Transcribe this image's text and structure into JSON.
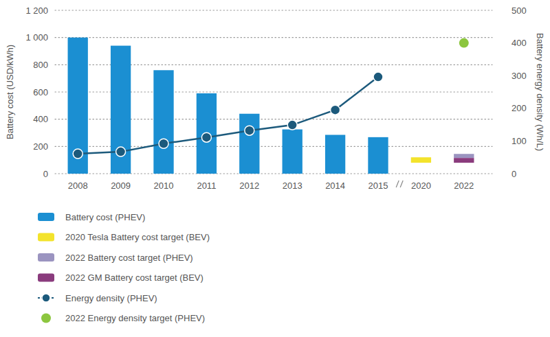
{
  "chart_data": {
    "type": "bar",
    "y_label": "Battery cost (USD/kWh)",
    "y2_label": "Battery energy density (Wh/L)",
    "categories": [
      "2008",
      "2009",
      "2010",
      "2011",
      "2012",
      "2013",
      "2014",
      "2015",
      "2020",
      "2022"
    ],
    "ylim": [
      0,
      1200
    ],
    "yticks": [
      0,
      200,
      400,
      600,
      800,
      {
        "value": 1000,
        "label": "1 000"
      },
      {
        "value": 1200,
        "label": "1 200"
      }
    ],
    "y2lim": [
      0,
      500
    ],
    "y2ticks": [
      0,
      100,
      200,
      300,
      400,
      500
    ],
    "grid": true,
    "legend": "bottom-left",
    "series": [
      {
        "name": "Battery cost (PHEV)",
        "type": "bar",
        "color": "#1b8fd2",
        "values": [
          1000,
          940,
          760,
          590,
          440,
          325,
          285,
          268,
          null,
          null
        ]
      },
      {
        "name": "2020 Tesla Battery cost target (BEV)",
        "type": "bar",
        "color": "#f3e32c",
        "values": [
          null,
          null,
          null,
          null,
          null,
          null,
          null,
          null,
          120,
          null
        ],
        "base": [
          null,
          null,
          null,
          null,
          null,
          null,
          null,
          null,
          80,
          null
        ]
      },
      {
        "name": "2022 Battery cost target (PHEV)",
        "type": "bar",
        "color": "#9b94c0",
        "values": [
          null,
          null,
          null,
          null,
          null,
          null,
          null,
          null,
          null,
          145
        ],
        "base": [
          null,
          null,
          null,
          null,
          null,
          null,
          null,
          null,
          null,
          115
        ]
      },
      {
        "name": "2022 GM Battery cost target (BEV)",
        "type": "bar",
        "color": "#8a3b7d",
        "values": [
          null,
          null,
          null,
          null,
          null,
          null,
          null,
          null,
          null,
          115
        ],
        "base": [
          null,
          null,
          null,
          null,
          null,
          null,
          null,
          null,
          null,
          80
        ]
      },
      {
        "name": "Energy density (PHEV)",
        "type": "line",
        "axis": "y2",
        "color": "#1c5a7c",
        "marker": "circle",
        "line_style": "solid",
        "values": [
          61,
          67,
          92,
          111,
          132,
          149,
          195,
          296,
          null,
          null
        ]
      },
      {
        "name": "2022 Energy density target (PHEV)",
        "type": "scatter",
        "axis": "y2",
        "color": "#8cc63f",
        "marker": "circle",
        "values": [
          null,
          null,
          null,
          null,
          null,
          null,
          null,
          null,
          null,
          400
        ]
      }
    ]
  }
}
